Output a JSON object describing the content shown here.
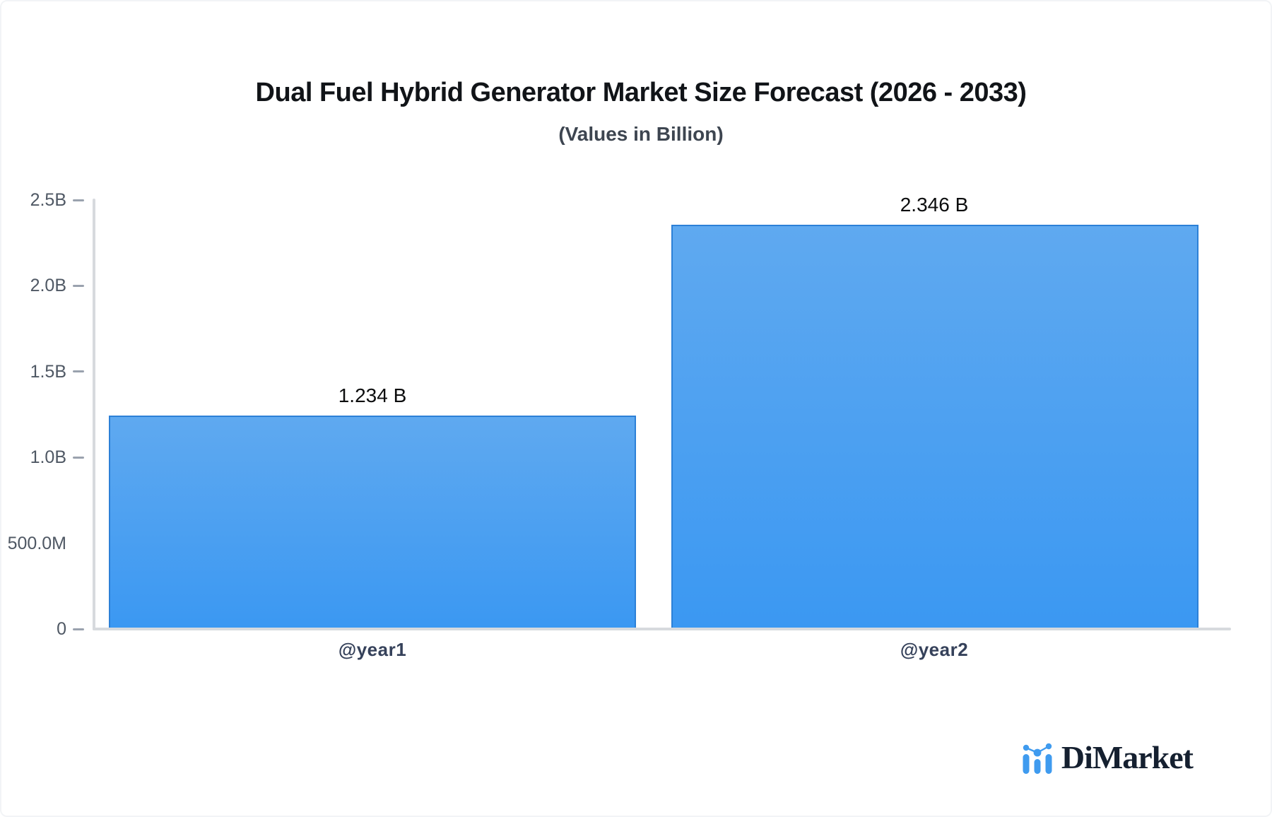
{
  "chart_data": {
    "type": "bar",
    "title": "Dual Fuel Hybrid Generator Market Size Forecast (2026 - 2033)",
    "subtitle": "(Values in Billion)",
    "categories": [
      "@year1",
      "@year2"
    ],
    "values": [
      1.234,
      2.346
    ],
    "value_labels": [
      "1.234 B",
      "2.346 B"
    ],
    "ylim": [
      0,
      2.5
    ],
    "yticks": [
      {
        "value": 2.5,
        "label": "2.5B",
        "dash": true
      },
      {
        "value": 2.0,
        "label": "2.0B",
        "dash": true
      },
      {
        "value": 1.5,
        "label": "1.5B",
        "dash": true
      },
      {
        "value": 1.0,
        "label": "1.0B",
        "dash": true
      },
      {
        "value": 0.5,
        "label": "500.0M",
        "dash": false
      },
      {
        "value": 0.0,
        "label": "0",
        "dash": true
      }
    ],
    "grid": false,
    "legend": false,
    "colors": {
      "bar_gradient_top": "#5fa9f0",
      "bar_gradient_bottom": "#3b98f2",
      "bar_border": "#2c80d7",
      "axis_line": "#d7dade",
      "tick_dash": "#9aa2ae"
    }
  },
  "branding": {
    "logo_text": "DiMarket",
    "logo_icon_color": "#3f9bef",
    "logo_text_color": "#152030"
  }
}
